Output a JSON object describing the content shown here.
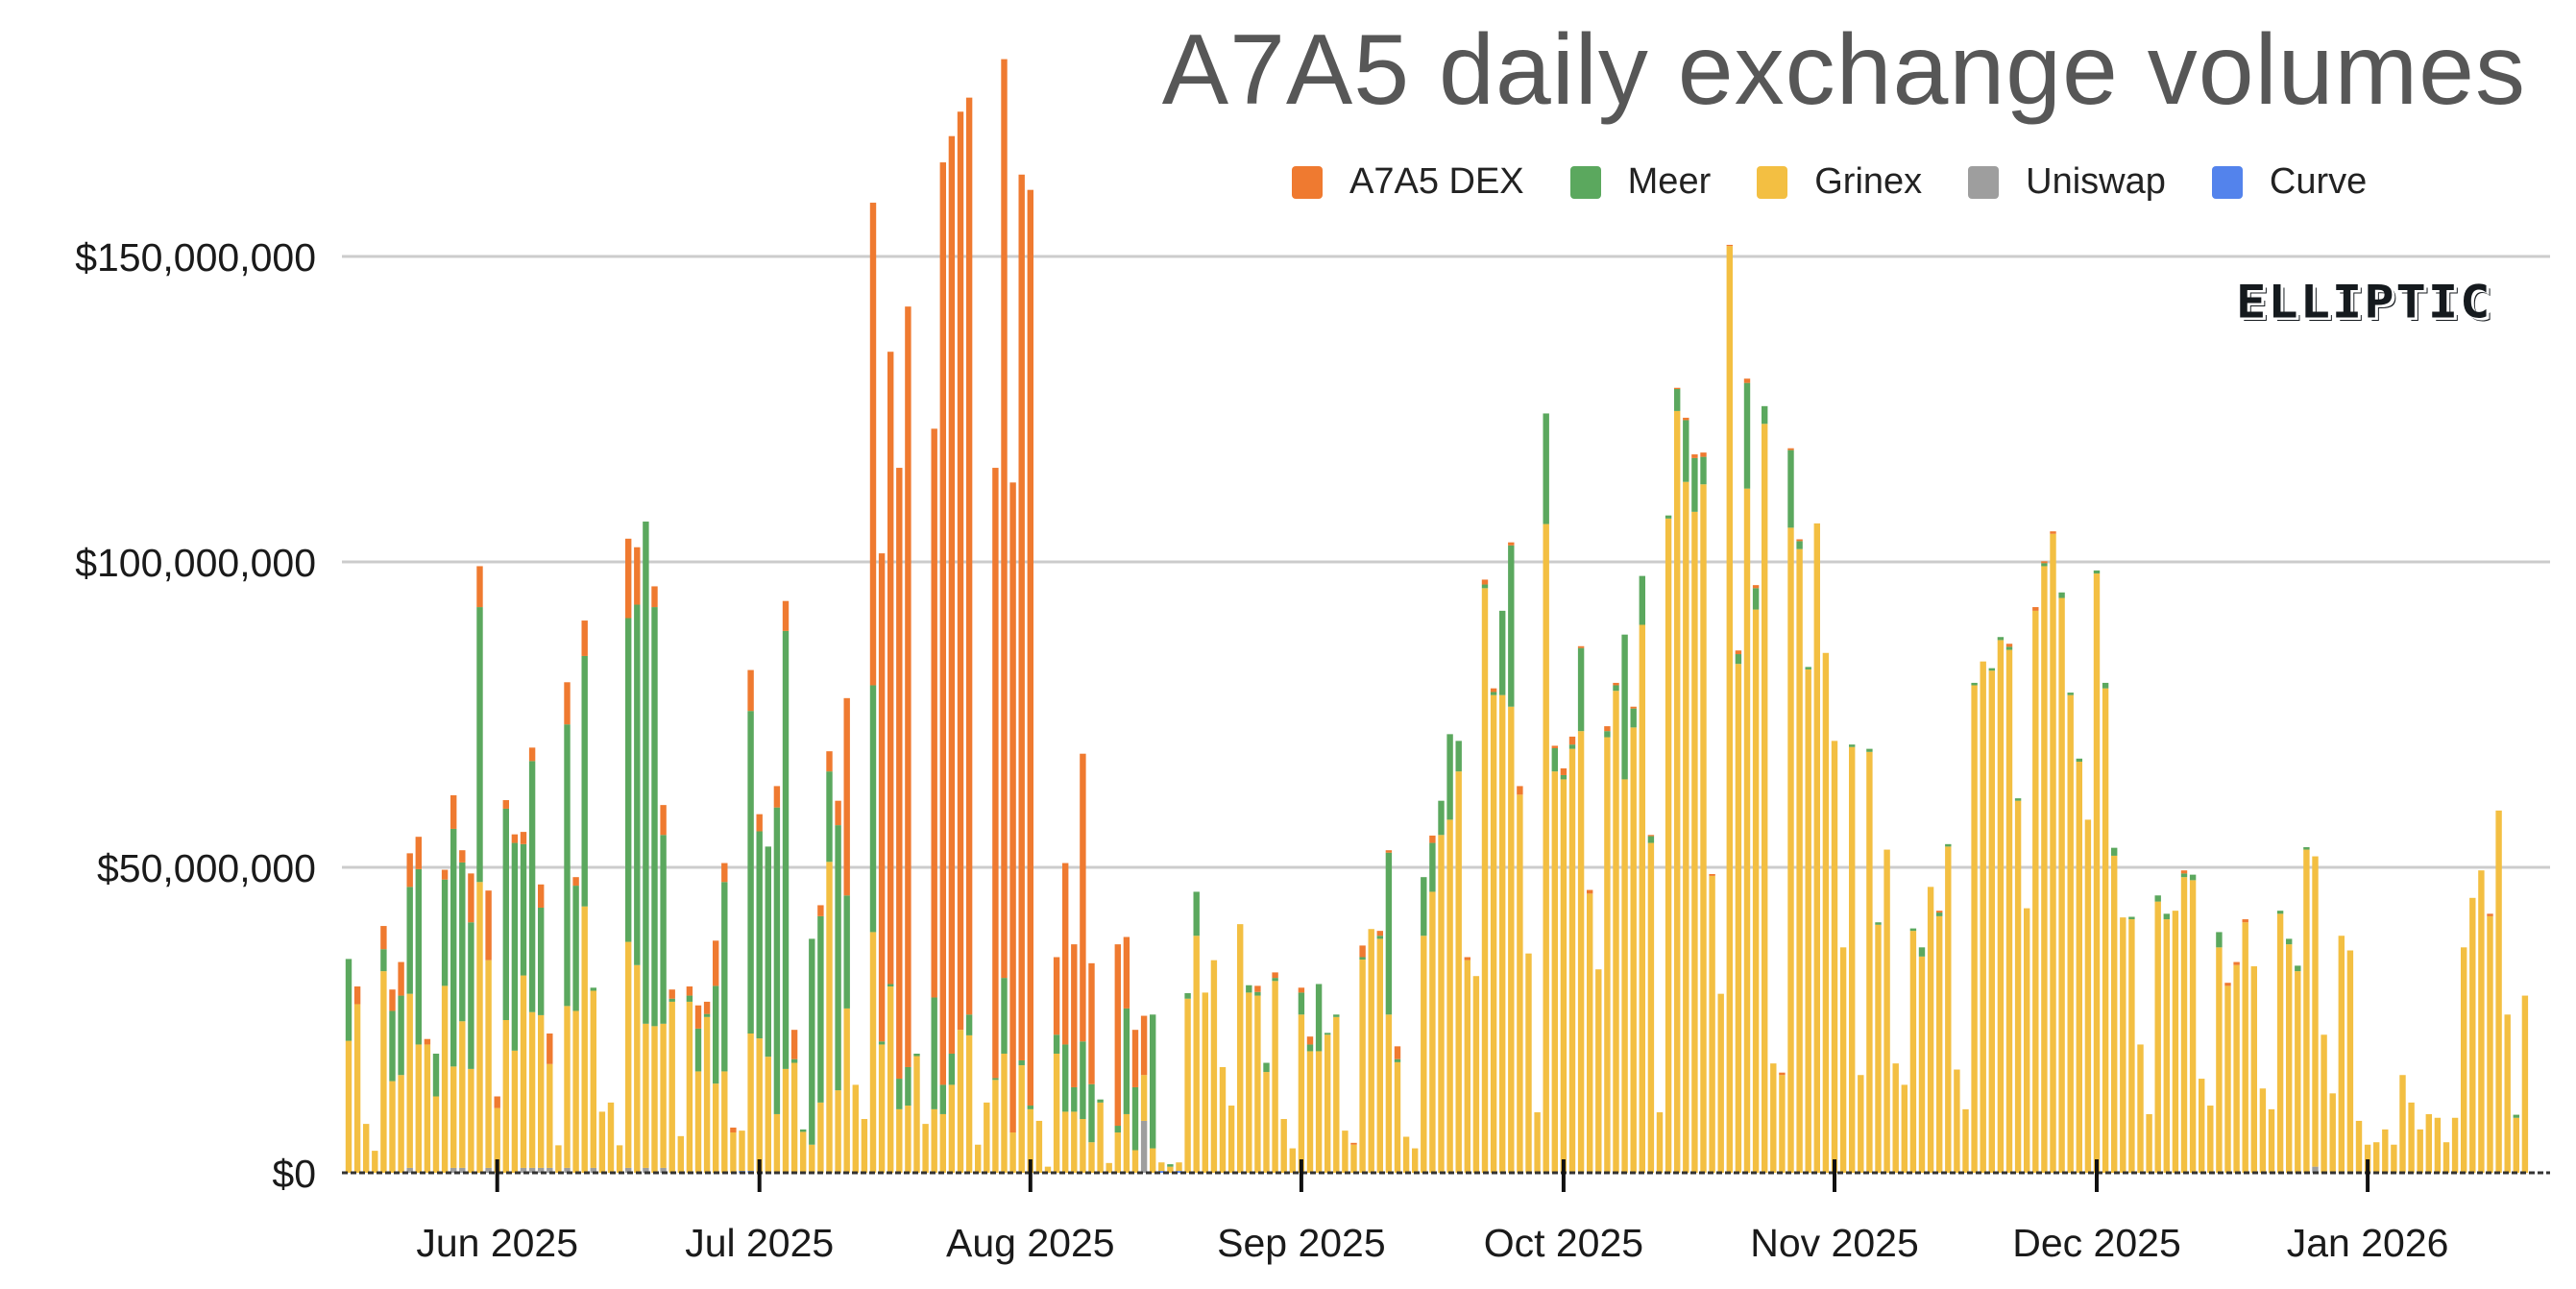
{
  "chart_data": {
    "type": "bar",
    "stacked": true,
    "title": "A7A5 daily exchange volumes",
    "xlabel": "",
    "ylabel": "",
    "x_range": [
      "2025-05-15",
      "2026-01-19"
    ],
    "interval": "daily",
    "ylim": [
      0,
      150000000
    ],
    "units": "USD millions (values); axis printed in USD",
    "grid": true,
    "legend_position": "top-right",
    "y_ticks": [
      {
        "value": 0,
        "label": "$0"
      },
      {
        "value": 50,
        "label": "$50,000,000"
      },
      {
        "value": 100,
        "label": "$100,000,000"
      },
      {
        "value": 150,
        "label": "$150,000,000"
      }
    ],
    "x_ticks": [
      {
        "date": "2025-06-01",
        "label": "Jun 2025"
      },
      {
        "date": "2025-07-01",
        "label": "Jul 2025"
      },
      {
        "date": "2025-08-01",
        "label": "Aug 2025"
      },
      {
        "date": "2025-09-01",
        "label": "Sep 2025"
      },
      {
        "date": "2025-10-01",
        "label": "Oct 2025"
      },
      {
        "date": "2025-11-01",
        "label": "Nov 2025"
      },
      {
        "date": "2025-12-01",
        "label": "Dec 2025"
      },
      {
        "date": "2026-01-01",
        "label": "Jan 2026"
      }
    ],
    "legend": [
      "A7A5 DEX",
      "Meer",
      "Grinex",
      "Uniswap",
      "Curve"
    ],
    "series": [
      {
        "name": "Curve",
        "color": "#5383EC",
        "values": [
          0,
          0,
          0,
          0,
          0,
          0,
          0,
          0,
          0,
          0,
          0,
          0,
          0,
          0,
          0,
          0,
          0,
          0,
          0,
          0,
          0,
          0,
          0,
          0,
          0,
          0,
          0,
          0,
          0,
          0,
          0,
          0,
          0,
          0,
          0,
          0,
          0,
          0,
          0,
          0,
          0,
          0,
          0,
          0,
          0,
          0.3,
          0.3,
          0,
          0,
          0,
          0,
          0,
          0,
          0,
          0,
          0,
          0,
          0,
          0,
          0,
          0,
          0,
          0,
          0,
          0,
          0,
          0,
          0,
          0,
          0,
          0,
          0,
          0,
          0,
          0,
          0,
          0,
          0,
          0,
          0,
          0,
          0,
          0,
          0,
          0,
          0,
          0,
          0,
          0,
          0,
          0,
          0,
          0,
          0.3,
          0,
          0.3,
          0,
          0,
          0,
          0,
          0,
          0,
          0,
          0,
          0,
          0,
          0,
          0,
          0,
          0,
          0,
          0,
          0,
          0,
          0,
          0,
          0,
          0,
          0,
          0,
          0,
          0,
          0,
          0,
          0,
          0,
          0,
          0,
          0,
          0,
          0,
          0,
          0,
          0,
          0,
          0,
          0,
          0,
          0,
          0,
          0,
          0,
          0,
          0,
          0,
          0,
          0,
          0,
          0,
          0,
          0,
          0,
          0,
          0,
          0,
          0,
          0,
          0,
          0,
          0,
          0,
          0,
          0,
          0,
          0,
          0,
          0,
          0,
          0,
          0,
          0,
          0,
          0,
          0,
          0,
          0,
          0,
          0,
          0,
          0,
          0,
          0,
          0,
          0,
          0,
          0,
          0,
          0,
          0,
          0,
          0,
          0,
          0,
          0,
          0,
          0,
          0,
          0,
          0,
          0,
          0,
          0,
          0,
          0,
          0,
          0,
          0,
          0,
          0,
          0,
          0,
          0,
          0,
          0,
          0,
          0,
          0,
          0,
          0,
          0,
          0,
          0,
          0,
          0,
          0,
          0,
          0,
          0,
          0,
          0,
          0,
          0,
          0,
          0,
          0,
          0,
          0,
          0,
          0,
          0,
          0,
          0,
          0,
          0,
          0,
          0,
          0,
          0,
          0,
          0
        ]
      },
      {
        "name": "Uniswap",
        "color": "#9E9E9E",
        "values": [
          0,
          0,
          0,
          0,
          0,
          0,
          0,
          0.8,
          0,
          0,
          0,
          0,
          0.8,
          0.8,
          0,
          0,
          0.8,
          0,
          0,
          0,
          0.8,
          0.8,
          0.8,
          0.8,
          0,
          0.8,
          0,
          0,
          0.8,
          0,
          0,
          0,
          0.8,
          0,
          0.8,
          0,
          0.8,
          0,
          0,
          0,
          0,
          0,
          0,
          0,
          0,
          0,
          0,
          0,
          0,
          0,
          0,
          0,
          0,
          0,
          0,
          0,
          0,
          0,
          0,
          0,
          0,
          0,
          0,
          0,
          0,
          0,
          0,
          0,
          0,
          0,
          0,
          0,
          0,
          0,
          0,
          0,
          0,
          0,
          0,
          0,
          0,
          0,
          0,
          0,
          0,
          0,
          0,
          0,
          0,
          0,
          0,
          8.5,
          0,
          0,
          0,
          0,
          0,
          0,
          0,
          0,
          0,
          0,
          0,
          0,
          0,
          0,
          0,
          0,
          0,
          0,
          0,
          0,
          0,
          0,
          0,
          0,
          0,
          0,
          0,
          0,
          0,
          0,
          0,
          0,
          0,
          0,
          0,
          0,
          0,
          0,
          0,
          0,
          0,
          0,
          0,
          0,
          0,
          0,
          0,
          0,
          0,
          0,
          0,
          0,
          0,
          0,
          0,
          0,
          0,
          0,
          0,
          0,
          0,
          0,
          0,
          0,
          0,
          0,
          0,
          0,
          0,
          0,
          0,
          0,
          0,
          0,
          0,
          0,
          0,
          0,
          0,
          0,
          0,
          0,
          0,
          0,
          0,
          0,
          0,
          0,
          0,
          0,
          0,
          0,
          0,
          0,
          0,
          0,
          0,
          0,
          0,
          0,
          0,
          0,
          0,
          0,
          0,
          0,
          0,
          0,
          0,
          0,
          0,
          0,
          0,
          0,
          0,
          0,
          0,
          0,
          0,
          0,
          0,
          0,
          0,
          0,
          0,
          0,
          0,
          0,
          0,
          0,
          0,
          0,
          0,
          1,
          0,
          0,
          0,
          0,
          0,
          0,
          0,
          0,
          0,
          0,
          0,
          0,
          0,
          0,
          0,
          0,
          0,
          0,
          0,
          0,
          0,
          0,
          0,
          0
        ]
      },
      {
        "name": "Grinex",
        "color": "#F3BF42",
        "values": [
          21.6,
          27.6,
          8,
          3.6,
          33,
          15,
          16,
          28.5,
          21,
          21,
          12.5,
          30.6,
          16.6,
          24,
          17,
          47.6,
          34,
          10.6,
          25,
          20,
          31.5,
          25.5,
          25,
          17,
          4.5,
          26.5,
          26.5,
          43.6,
          29,
          10,
          11.5,
          4.5,
          37,
          34,
          23.6,
          24,
          23.6,
          28,
          6,
          28,
          16.6,
          25.5,
          14.6,
          16.6,
          6.6,
          6.6,
          22.5,
          22,
          19,
          9.6,
          17,
          18,
          6.7,
          4.6,
          11.5,
          50.9,
          13.5,
          26.9,
          14.4,
          8.8,
          39.4,
          21,
          30.5,
          10.4,
          11,
          19.1,
          8,
          10.4,
          9.6,
          14.4,
          23.4,
          22.5,
          4.6,
          11.5,
          15.2,
          19.5,
          6.6,
          17.6,
          10.4,
          8.5,
          1,
          19.5,
          10,
          10,
          8.8,
          5,
          11.5,
          1.6,
          6.6,
          9.6,
          3.7,
          7.5,
          4,
          1.4,
          1,
          1.4,
          28.5,
          38.8,
          29.5,
          34.8,
          17.3,
          11,
          40.7,
          29.5,
          29,
          16.5,
          31.4,
          8.8,
          4,
          25.9,
          19.9,
          19.9,
          22.6,
          25.5,
          6.9,
          4.6,
          34.9,
          39.9,
          38.3,
          25.9,
          18.1,
          5.9,
          4,
          38.8,
          46,
          55.3,
          57.8,
          65.7,
          34.8,
          32.2,
          95.7,
          78.2,
          78.2,
          76.3,
          61.9,
          35.9,
          9.9,
          106.2,
          65.7,
          64.4,
          69.4,
          72.3,
          45.7,
          33.3,
          71.3,
          78.9,
          64.4,
          72.9,
          89.7,
          54,
          9.9,
          107.1,
          124.7,
          113.1,
          108.2,
          112.7,
          48.6,
          29.3,
          151.7,
          83.3,
          112,
          92.2,
          122.6,
          17.9,
          16,
          105.6,
          102.1,
          82.4,
          106.3,
          85.1,
          70.7,
          36.9,
          69.7,
          16,
          68.9,
          40.6,
          52.9,
          17.9,
          14.4,
          39.6,
          35.4,
          46.8,
          42,
          53.4,
          16.9,
          10.4,
          79.8,
          83.7,
          82.2,
          87.2,
          85.6,
          60.9,
          43.3,
          92,
          99.3,
          104.6,
          94.1,
          78.2,
          67.3,
          57.8,
          98.1,
          79.3,
          51.9,
          41.8,
          41.5,
          21,
          9.6,
          44.4,
          41.5,
          42.9,
          48.4,
          47.9,
          15.4,
          11,
          36.9,
          30.6,
          34,
          41,
          33.8,
          13.8,
          10.4,
          42.4,
          37.4,
          33,
          52.9,
          50.8,
          22.6,
          13,
          38.8,
          36.4,
          8.5,
          4.6,
          5,
          7.1,
          4.6,
          16,
          11.5,
          7.1,
          9.6,
          9,
          5,
          9,
          36.9,
          45,
          49.5,
          42,
          59.3,
          25.9,
          9,
          29
        ]
      },
      {
        "name": "Meer",
        "color": "#5BA85E",
        "values": [
          13.4,
          0,
          0,
          0,
          3.6,
          11.5,
          13,
          17.5,
          28.7,
          0,
          7,
          17.4,
          38.9,
          26,
          24,
          45,
          0,
          0,
          34.6,
          34,
          21.5,
          41.1,
          17.6,
          0,
          0,
          46.1,
          20.5,
          41,
          0.5,
          0,
          0,
          0,
          53,
          59,
          82.2,
          68.6,
          30.9,
          0.5,
          0,
          1,
          7,
          0.5,
          16,
          31,
          0,
          0,
          52.8,
          33.9,
          34.4,
          50.2,
          71.7,
          0.6,
          0.4,
          33.7,
          30.5,
          14.8,
          43.4,
          18.5,
          0,
          0,
          40.4,
          0.5,
          0.4,
          5,
          6.3,
          0.4,
          0,
          18.3,
          4.8,
          5.1,
          0,
          3.4,
          0,
          0,
          0.3,
          12.4,
          0,
          0.8,
          0.6,
          0,
          0,
          3.1,
          11,
          4,
          12.7,
          9.5,
          0.5,
          0,
          1.1,
          17.3,
          10.3,
          0,
          21.9,
          0,
          0.4,
          0,
          0.9,
          7.2,
          0,
          0,
          0,
          0,
          0,
          1.2,
          0.6,
          1.5,
          0.5,
          0,
          0,
          3.6,
          1.1,
          11,
          0.3,
          0.4,
          0,
          0,
          0.4,
          0,
          0.5,
          26.5,
          0.5,
          0,
          0,
          9.6,
          8,
          5.6,
          14,
          5,
          0,
          0,
          0.6,
          0.5,
          13.8,
          26.4,
          0,
          0,
          0,
          18.1,
          3.8,
          0.7,
          0.7,
          13.6,
          0,
          0,
          1,
          0.9,
          23.7,
          3.1,
          8,
          1.1,
          0,
          0.5,
          3.6,
          10.1,
          8.8,
          4.5,
          0,
          0,
          0,
          1.6,
          17.3,
          3.5,
          2.9,
          0,
          0,
          12.7,
          1.3,
          0.4,
          0,
          0,
          0,
          0,
          0.4,
          0,
          0.5,
          0.4,
          0,
          0,
          0,
          0.4,
          1.5,
          0,
          0.6,
          0.4,
          0,
          0,
          0.4,
          0,
          0.4,
          0.5,
          0.5,
          0.4,
          0,
          0,
          0.5,
          0,
          0.9,
          0.4,
          0.5,
          0,
          0.5,
          0.9,
          1.3,
          0,
          0.4,
          0,
          0,
          1,
          0.9,
          0,
          0.6,
          0.9,
          0,
          0,
          2.5,
          0,
          0,
          0,
          0,
          0,
          0,
          0.5,
          0.9,
          0.9,
          0.4,
          0,
          0,
          0,
          0,
          0,
          0,
          0,
          0,
          0,
          0,
          0,
          0,
          0,
          0,
          0,
          0,
          0,
          0,
          0,
          0,
          0,
          0,
          0,
          0.5,
          0
        ]
      },
      {
        "name": "A7A5 DEX",
        "color": "#EF7A30",
        "values": [
          0,
          2.9,
          0,
          0,
          3.8,
          3.5,
          5.5,
          5.5,
          5.3,
          0.9,
          0,
          1.6,
          5.5,
          2,
          8,
          6.7,
          11.4,
          1.9,
          1.4,
          1.4,
          2,
          2.2,
          3.8,
          5,
          0,
          6.9,
          1.4,
          5.8,
          0,
          0,
          0,
          0,
          13,
          9.4,
          0,
          3.4,
          4.9,
          1.5,
          0,
          1.5,
          3.8,
          2,
          7.4,
          3.1,
          0.8,
          0,
          6.7,
          2.8,
          0,
          3.5,
          4.9,
          4.8,
          0,
          0,
          1.8,
          3.3,
          4,
          32.3,
          0,
          0,
          79,
          79.9,
          103.5,
          100,
          124.5,
          0,
          0,
          93.1,
          151,
          150.2,
          150.3,
          150.1,
          0,
          0,
          99.9,
          150.4,
          106.4,
          145,
          149.9,
          0,
          0,
          12.7,
          29.7,
          23.4,
          47.1,
          19.8,
          0,
          0,
          29.7,
          11.7,
          9.4,
          9.7,
          0,
          0,
          0,
          0,
          0,
          0,
          0,
          0,
          0,
          0,
          0,
          0,
          1,
          0,
          0.9,
          0,
          0,
          0.8,
          1.3,
          0,
          0,
          0,
          0,
          0.3,
          1.9,
          0,
          0.8,
          0.4,
          2.1,
          0,
          0,
          0,
          1.2,
          0,
          0,
          0,
          0.5,
          0,
          0.8,
          0.6,
          0,
          0.5,
          1.4,
          0,
          0,
          0,
          0.4,
          1.1,
          1.3,
          0.3,
          0.6,
          0,
          0.8,
          0.4,
          0,
          0.3,
          0,
          0.2,
          0,
          0,
          0.2,
          0.4,
          0.6,
          0.7,
          0.3,
          0,
          0.2,
          0.6,
          0.7,
          0.5,
          0,
          0,
          0.4,
          0.3,
          0.3,
          0,
          0,
          0,
          0,
          0,
          0,
          0,
          0,
          0,
          0,
          0,
          0,
          0,
          0,
          0,
          0.3,
          0,
          0,
          0,
          0,
          0,
          0,
          0,
          0.5,
          0,
          0,
          0.6,
          0.3,
          0.4,
          0,
          0,
          0,
          0,
          0,
          0,
          0,
          0,
          0,
          0,
          0,
          0,
          0,
          0,
          0.5,
          0,
          0,
          0,
          0,
          0.5,
          0.5,
          0.5,
          0,
          0,
          0,
          0,
          0,
          0,
          0,
          0,
          0,
          0,
          0,
          0,
          0,
          0,
          0,
          0,
          0,
          0,
          0,
          0,
          0,
          0,
          0,
          0,
          0,
          0,
          0,
          0.4,
          0,
          0,
          0,
          0
        ]
      }
    ]
  },
  "legend_items": [
    {
      "label": "A7A5 DEX",
      "color": "#EF7A30"
    },
    {
      "label": "Meer",
      "color": "#5BA85E"
    },
    {
      "label": "Grinex",
      "color": "#F3BF42"
    },
    {
      "label": "Uniswap",
      "color": "#9E9E9E"
    },
    {
      "label": "Curve",
      "color": "#5383EC"
    }
  ],
  "logo": "ELLIPTIC"
}
